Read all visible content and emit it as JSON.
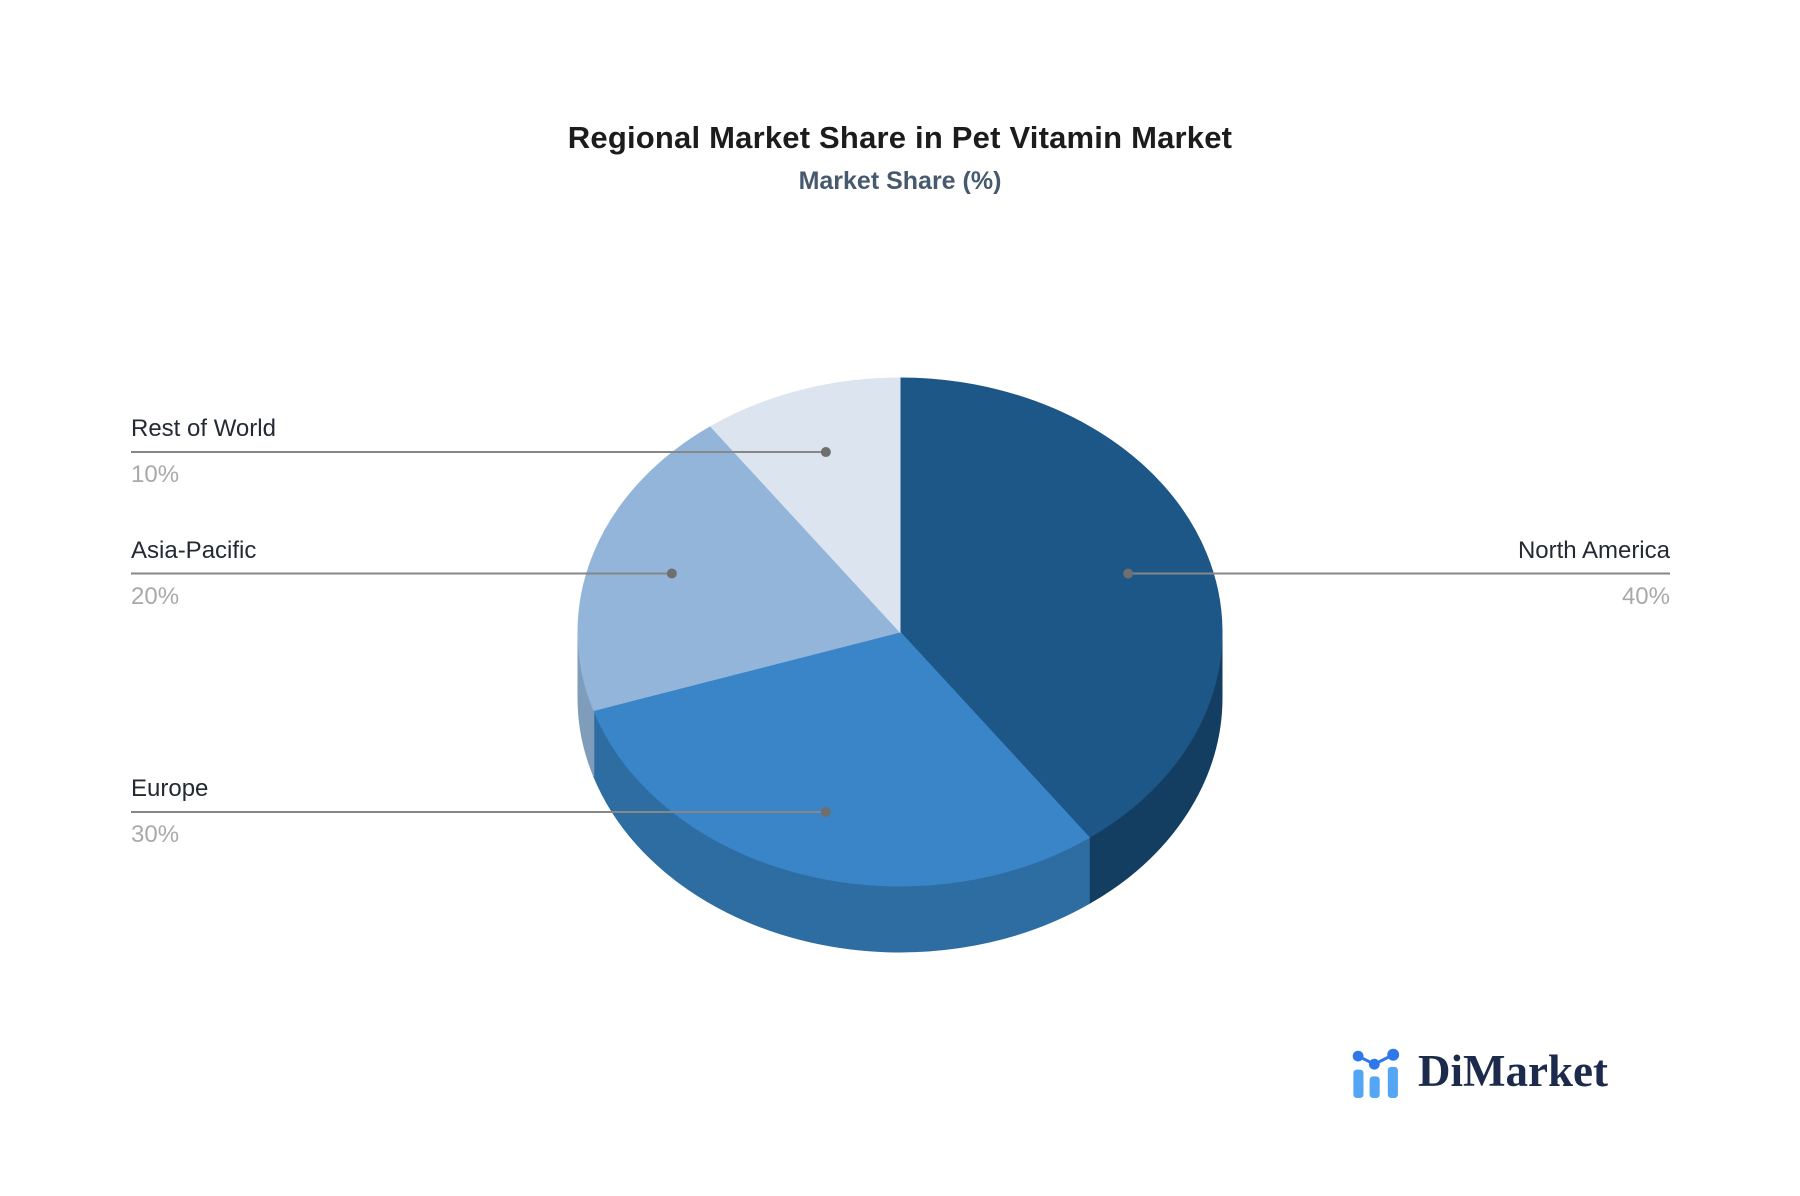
{
  "page": {
    "background": "#ffffff"
  },
  "chart_data": {
    "type": "pie",
    "title": "Regional Market Share in Pet Vitamin Market",
    "subtitle": "Market Share (%)",
    "series_name": "Market Share",
    "unit": "%",
    "categories": [
      "North America",
      "Europe",
      "Asia-Pacific",
      "Rest of World"
    ],
    "values": [
      40,
      30,
      20,
      10
    ],
    "value_labels": [
      "40%",
      "30%",
      "20%",
      "10%"
    ],
    "style": {
      "variant": "pie-3d",
      "direction": "clockwise",
      "start_angle_deg": 0,
      "legend": "none",
      "labels_position": "outside-left-right",
      "slice_colors": [
        "#1d5788",
        "#3a85c8",
        "#93b5d9",
        "#dce4ef"
      ],
      "slice_side_colors": [
        "#133d61",
        "#2e6da1",
        "#7f9cba",
        "#b9c5d6"
      ],
      "title_color": "#1c1c1c",
      "subtitle_color": "#47596e",
      "label_color": "#232a33",
      "value_color": "#a9a9a9",
      "leader_line_color": "#878787",
      "leader_dot_color": "#6f6f6f"
    }
  },
  "logo": {
    "text": "DiMarket",
    "icon": "bar-line-chart-icon",
    "text_color": "#1c2b4b",
    "bar_color": "#54a5f4",
    "dot_color": "#2f78e9"
  }
}
